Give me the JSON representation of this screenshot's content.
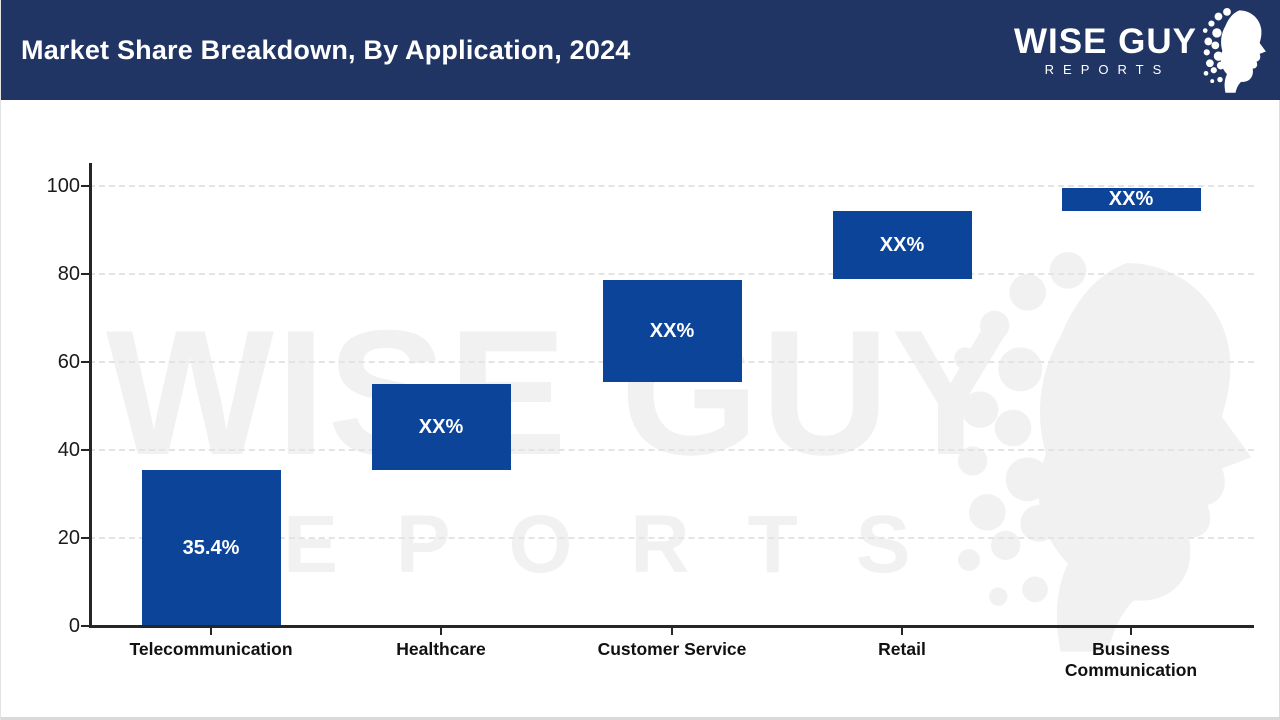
{
  "header": {
    "title": "Market Share Breakdown, By Application, 2024",
    "logo": {
      "brand": "WISE GUY",
      "sub": "REPORTS"
    }
  },
  "watermark": {
    "brand": "WISE GUY",
    "sub": "REPORTS"
  },
  "chart_data": {
    "type": "bar",
    "variant": "waterfall",
    "title": "Market Share Breakdown, By Application, 2024",
    "categories": [
      "Telecommunication",
      "Healthcare",
      "Customer Service",
      "Retail",
      "Business Communication"
    ],
    "segments": [
      {
        "category": "Telecommunication",
        "start": 0,
        "end": 35.4,
        "label": "35.4%"
      },
      {
        "category": "Healthcare",
        "start": 35.4,
        "end": 55.0,
        "label": "XX%"
      },
      {
        "category": "Customer Service",
        "start": 55.4,
        "end": 78.6,
        "label": "XX%"
      },
      {
        "category": "Retail",
        "start": 78.8,
        "end": 94.3,
        "label": "XX%"
      },
      {
        "category": "Business Communication",
        "start": 94.4,
        "end": 99.6,
        "label": "XX%"
      }
    ],
    "y_ticks": [
      0,
      20,
      40,
      60,
      80,
      100
    ],
    "ylim": [
      0,
      105
    ],
    "xlabel": "",
    "ylabel": "",
    "grid": "horizontal-dashed",
    "legend": "none",
    "bar_color": "#0b4499",
    "bar_label_color": "#ffffff"
  },
  "colors": {
    "header_bg": "#213564",
    "axis": "#262626",
    "gridline": "#e4e4e4",
    "watermark": "#f1f1f1"
  }
}
